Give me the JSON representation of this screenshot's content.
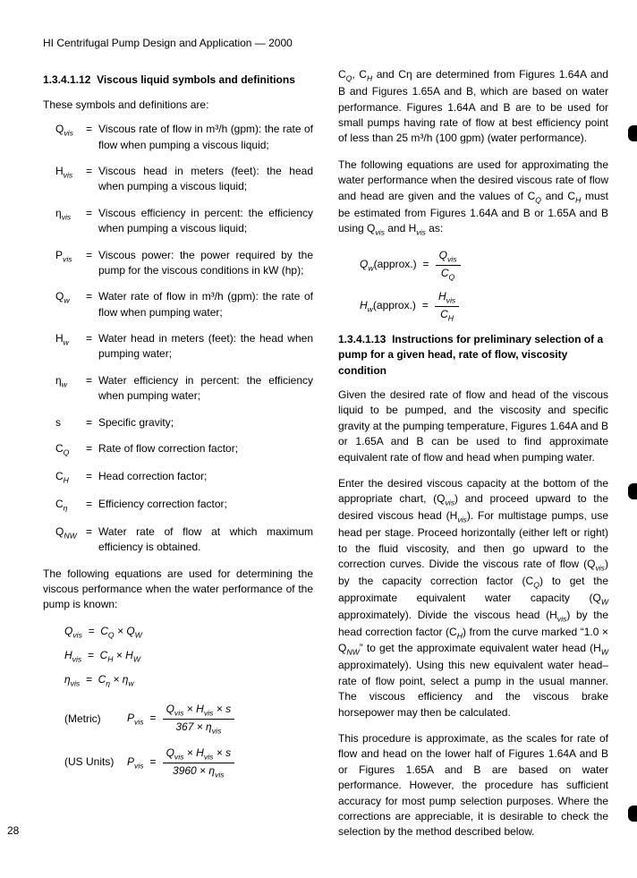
{
  "header": "HI Centrifugal Pump Design and Application — 2000",
  "section1": {
    "num": "1.3.4.1.12",
    "title": "Viscous liquid symbols and definitions"
  },
  "intro1": "These symbols and definitions are:",
  "defs": [
    {
      "sym": "Q",
      "sub": "vis",
      "desc": "Viscous rate of flow in m³/h (gpm): the rate of flow when pumping a viscous liquid;"
    },
    {
      "sym": "H",
      "sub": "vis",
      "desc": "Viscous head in meters (feet): the head when pumping a viscous liquid;"
    },
    {
      "sym": "η",
      "sub": "vis",
      "desc": "Viscous efficiency in percent: the efficiency when pumping a viscous liquid;"
    },
    {
      "sym": "P",
      "sub": "vis",
      "desc": "Viscous power: the power required by the pump for the viscous conditions in kW (hp);"
    },
    {
      "sym": "Q",
      "sub": "w",
      "desc": "Water rate of flow in m³/h (gpm): the rate of flow when pumping water;"
    },
    {
      "sym": "H",
      "sub": "w",
      "desc": "Water head in meters (feet): the head when pumping water;"
    },
    {
      "sym": "η",
      "sub": "w",
      "desc": "Water efficiency in percent: the efficiency when pumping water;"
    },
    {
      "sym": "s",
      "sub": "",
      "desc": "Specific gravity;"
    },
    {
      "sym": "C",
      "sub": "Q",
      "desc": "Rate of flow correction factor;"
    },
    {
      "sym": "C",
      "sub": "H",
      "desc": "Head correction factor;"
    },
    {
      "sym": "C",
      "sub": "η",
      "desc": "Efficiency correction factor;"
    },
    {
      "sym": "Q",
      "sub": "NW",
      "desc": "Water rate of flow at which maximum efficiency is obtained."
    }
  ],
  "para_left1": "The following equations are used for determining the viscous performance when the water performance of the pump is known:",
  "eqns_left": {
    "e1_lhs": "Q",
    "e1_lsub": "vis",
    "e1_rhs1": "C",
    "e1_rsub1": "Q",
    "e1_rhs2": "Q",
    "e1_rsub2": "W",
    "e2_lhs": "H",
    "e2_lsub": "vis",
    "e2_rhs1": "C",
    "e2_rsub1": "H",
    "e2_rhs2": "H",
    "e2_rsub2": "W",
    "e3_lhs": "η",
    "e3_lsub": "vis",
    "e3_rhs1": "C",
    "e3_rsub1": "η",
    "e3_rhs2": "η",
    "e3_rsub2": "w",
    "metric_lbl": "(Metric)",
    "us_lbl": "(US Units)",
    "p_sym": "P",
    "p_sub": "vis",
    "num_text": "Q_vis × H_vis × s",
    "den_metric": "367 × η_vis",
    "den_us": "3960 × η_vis"
  },
  "para_right1": "C_Q, C_H and Cη are determined from Figures 1.64A and B and Figures 1.65A and B, which are based on water performance. Figures 1.64A and B are to be used for small pumps having rate of flow at best efficiency point of less than 25 m³/h (100 gpm) (water performance).",
  "para_right2": "The following equations are used for approximating the water performance when the desired viscous rate of flow and head are given and the values of C_Q and C_H must be estimated from Figures 1.64A and B or 1.65A and B using Q_vis and H_vis as:",
  "eqns_right": {
    "e1_lhs": "Q",
    "e1_lsub": "w",
    "approx": "(approx.)",
    "e1_num": "Q_vis",
    "e1_den": "C_Q",
    "e2_lhs": "H",
    "e2_lsub": "w",
    "e2_num": "H_vis",
    "e2_den": "C_H"
  },
  "section2": {
    "num": "1.3.4.1.13",
    "title": "Instructions for preliminary selection of a pump for a given head, rate of flow, viscosity condition"
  },
  "para_right3": "Given the desired rate of flow and head of the viscous liquid to be pumped, and the viscosity and specific gravity at the pumping temperature, Figures 1.64A and B or 1.65A and B can be used to find approximate equivalent rate of flow and head when pumping water.",
  "para_right4": "Enter the desired viscous capacity at the bottom of the appropriate chart, (Q_vis) and proceed upward to the desired viscous head (H_vis). For multistage pumps, use head per stage. Proceed horizontally (either left or right) to the fluid viscosity, and then go upward to the correction curves. Divide the viscous rate of flow (Q_vis) by the capacity correction factor (C_Q) to get the approximate equivalent water capacity (Q_W approximately). Divide the viscous head (H_vis) by the head correction factor (C_H) from the curve marked \"1.0 × Q_NW\" to get the approximate equivalent water head (H_W approximately). Using this new equivalent water head–rate of flow point, select a pump in the usual manner. The viscous efficiency and the viscous brake horsepower may then be calculated.",
  "para_right5": "This procedure is approximate, as the scales for rate of flow and head on the lower half of Figures 1.64A and B or Figures 1.65A and B are based on water performance. However, the procedure has sufficient accuracy for most pump selection purposes. Where the corrections are appreciable, it is desirable to check the selection by the method described below.",
  "pagenum": "28"
}
